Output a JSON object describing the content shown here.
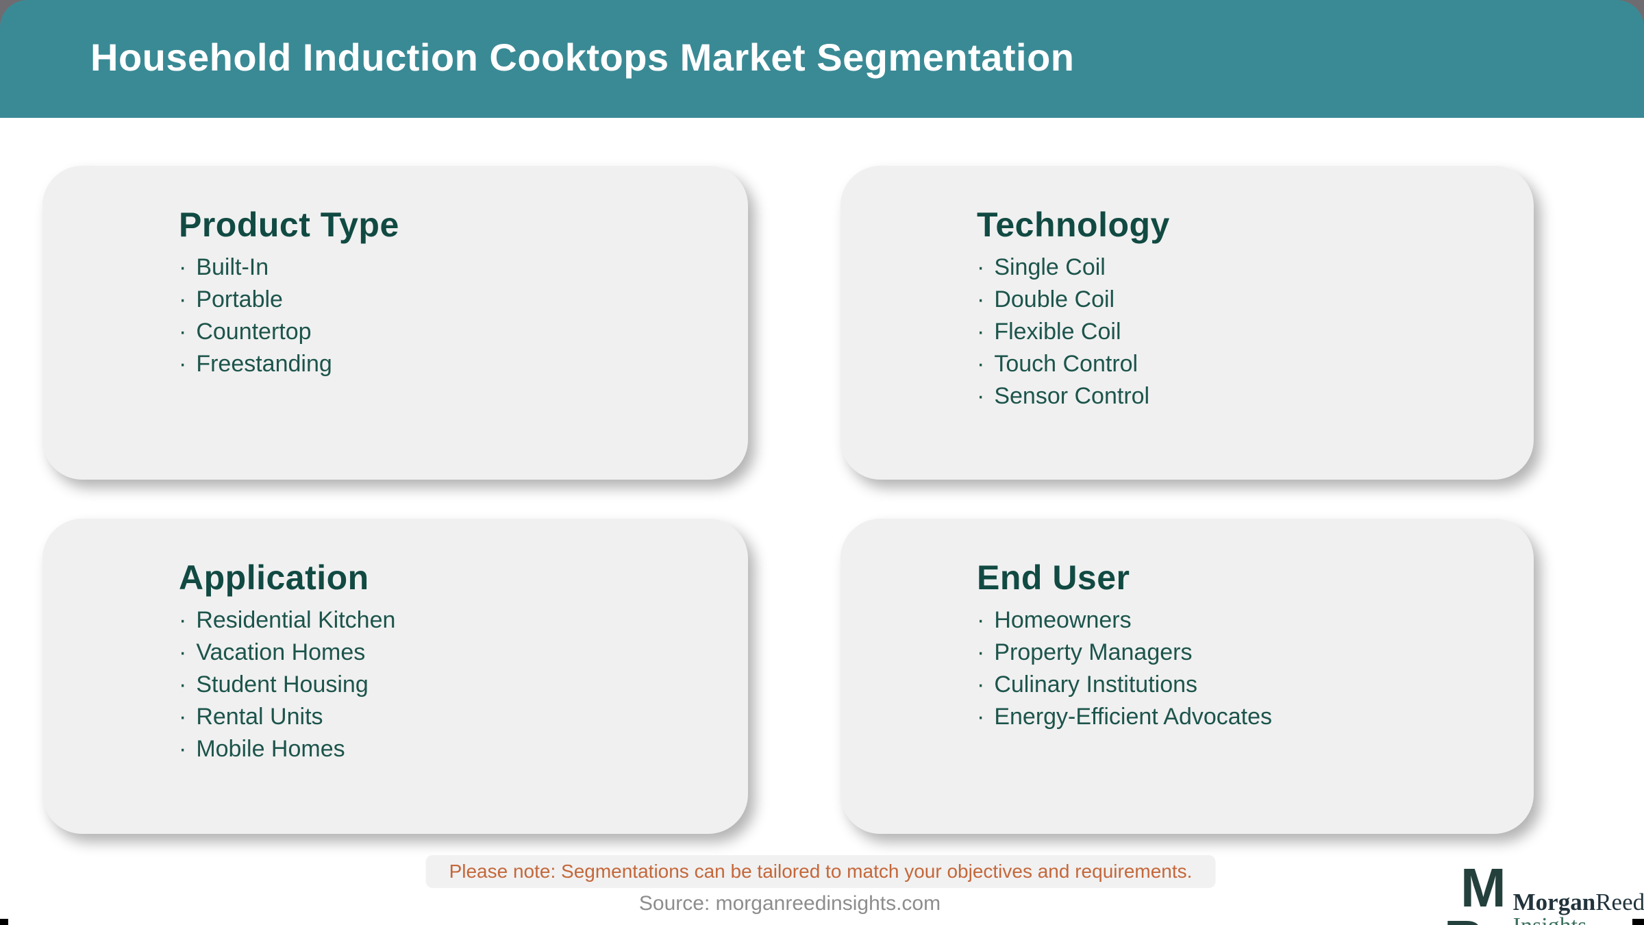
{
  "header": {
    "title": "Household Induction Cooktops Market Segmentation"
  },
  "cards": [
    {
      "title": "Product Type",
      "items": [
        "Built-In",
        "Portable",
        "Countertop",
        "Freestanding"
      ]
    },
    {
      "title": "Technology",
      "items": [
        "Single Coil",
        "Double Coil",
        "Flexible Coil",
        "Touch Control",
        "Sensor Control"
      ]
    },
    {
      "title": "Application",
      "items": [
        "Residential Kitchen",
        "Vacation Homes",
        "Student Housing",
        "Rental Units",
        "Mobile Homes"
      ]
    },
    {
      "title": "End User",
      "items": [
        "Homeowners",
        "Property Managers",
        "Culinary Institutions",
        "Energy-Efficient Advocates"
      ]
    }
  ],
  "footer": {
    "note": "Please note: Segmentations can be tailored to match your objectives and requirements.",
    "source": "Source: morganreedinsights.com"
  },
  "logo": {
    "monogram_m": "M",
    "monogram_r": "R",
    "name_bold": "Morgan",
    "name_regular": "Reed",
    "tagline": "Insights"
  },
  "colors": {
    "header_teal": "#3a8a95",
    "corner_gray": "#6f6c71",
    "card_bg": "#f0f0f0",
    "card_title_green": "#114a42",
    "card_item_green": "#1c544b",
    "note_orange": "#c4673a",
    "note_bg": "#f1f1f1",
    "source_gray": "#8d8d8d",
    "logo_dark": "#24403c",
    "logo_tagline_green": "#3c7060"
  }
}
